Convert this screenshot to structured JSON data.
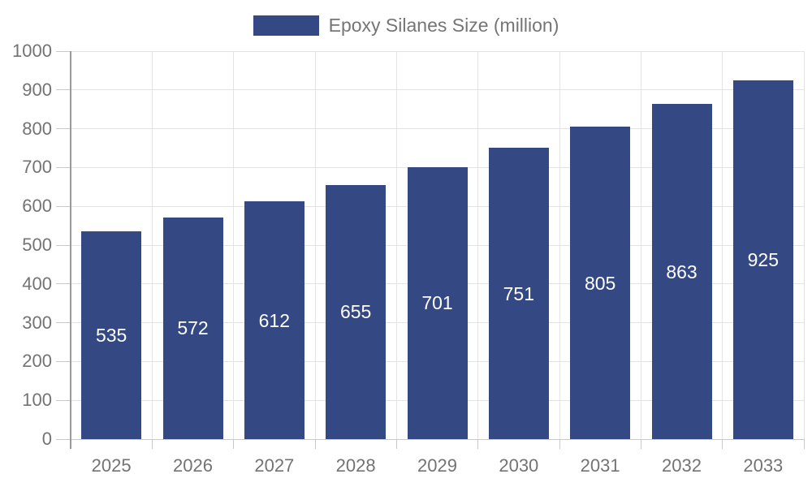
{
  "chart_data": {
    "type": "bar",
    "title": "",
    "legend_label": "Epoxy Silanes Size (million)",
    "legend_position": "top",
    "categories": [
      "2025",
      "2026",
      "2027",
      "2028",
      "2029",
      "2030",
      "2031",
      "2032",
      "2033"
    ],
    "values": [
      535,
      572,
      612,
      655,
      701,
      751,
      805,
      863,
      925
    ],
    "xlabel": "",
    "ylabel": "",
    "ylim": [
      0,
      1000
    ],
    "yticks": [
      0,
      100,
      200,
      300,
      400,
      500,
      600,
      700,
      800,
      900,
      1000
    ],
    "grid": true,
    "colors": {
      "bar": "#344983",
      "value_label": "#ffffff",
      "axis_text": "#737373",
      "legend_text": "#757575",
      "grid": "#e3e3e3",
      "tick": "#c9c9c9",
      "axis_line": "#999999",
      "background": "#ffffff"
    }
  }
}
